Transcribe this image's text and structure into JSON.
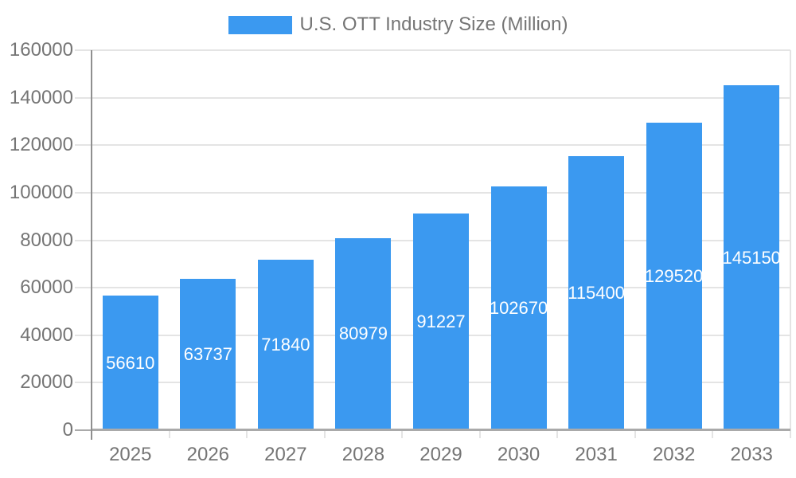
{
  "chart_data": {
    "type": "bar",
    "title": "U.S. OTT Industry Size (Million)",
    "legend": {
      "position": "top",
      "label": "U.S. OTT Industry Size (Million)"
    },
    "categories": [
      "2025",
      "2026",
      "2027",
      "2028",
      "2029",
      "2030",
      "2031",
      "2032",
      "2033"
    ],
    "values": [
      56610,
      63737,
      71840,
      80979,
      91227,
      102670,
      115400,
      129520,
      145150
    ],
    "series": [
      {
        "name": "U.S. OTT Industry Size (Million)",
        "values": [
          56610,
          63737,
          71840,
          80979,
          91227,
          102670,
          115400,
          129520,
          145150
        ]
      }
    ],
    "xlabel": "",
    "ylabel": "",
    "ylim": [
      0,
      160000
    ],
    "yticks": [
      0,
      20000,
      40000,
      60000,
      80000,
      100000,
      120000,
      140000,
      160000
    ],
    "grid": true,
    "value_labels_inside_bars": true,
    "colors": {
      "bar": "#3B99F0",
      "value_label": "#FFFFFF",
      "axis_text": "#757575",
      "gridline": "#E4E4E4",
      "axis_line": "#8F8F8F",
      "baseline": "#AAAAAA",
      "background": "#FFFFFF"
    }
  }
}
